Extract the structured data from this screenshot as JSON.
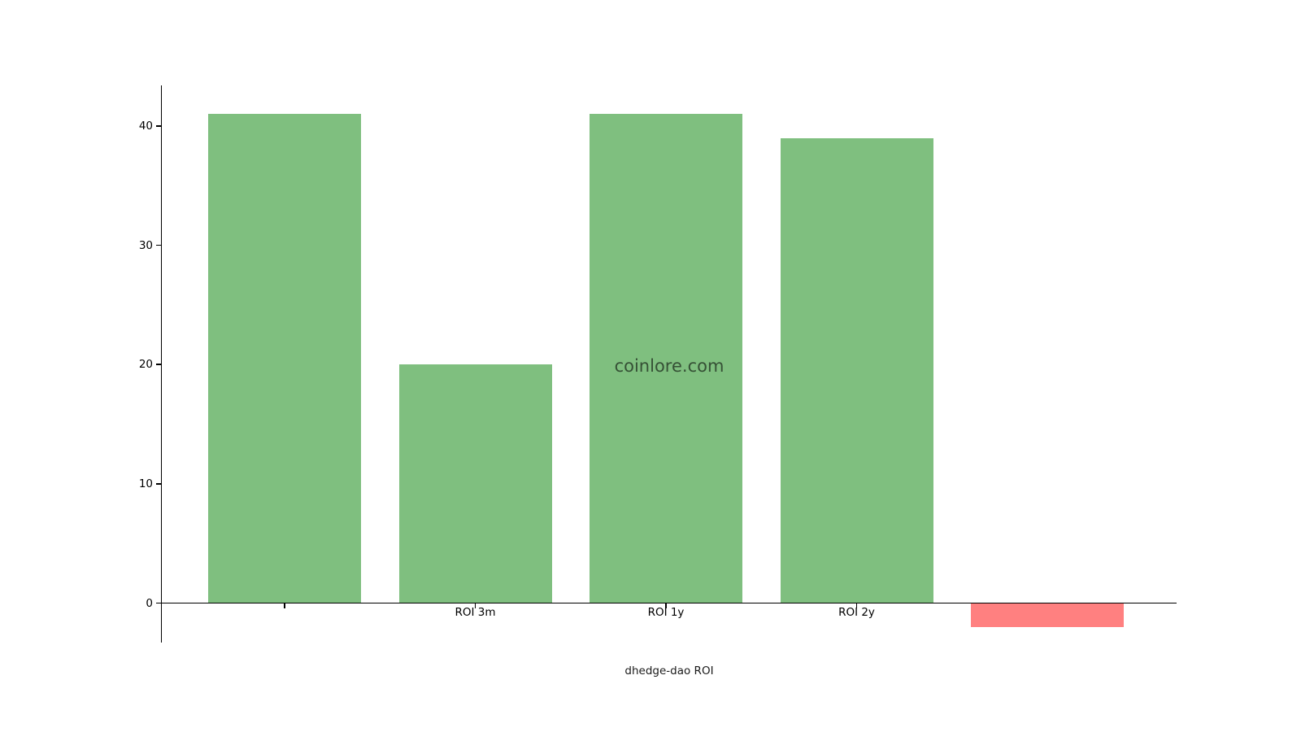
{
  "watermark": "coinlore.com",
  "chart_data": {
    "type": "bar",
    "title": "dhedge-dao ROI",
    "categories": [
      "",
      "ROI 3m",
      "ROI 1y",
      "ROI 2y",
      ""
    ],
    "values": [
      41,
      20,
      41,
      39,
      -2
    ],
    "yticks": [
      0,
      10,
      20,
      30,
      40
    ],
    "ylim": [
      -3.3,
      43.4
    ],
    "xlabel": "dhedge-dao ROI",
    "ylabel": "",
    "grid": false,
    "legend": "none",
    "positive_color": "#7fbf7f",
    "negative_color": "#ff8080",
    "axis_color": "#000000",
    "tick_label_color": "#000000",
    "title_color": "#1a1a1a",
    "watermark_color": "rgba(0,0,0,0.58)"
  }
}
